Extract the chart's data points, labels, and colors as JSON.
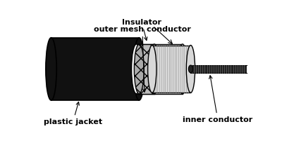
{
  "bg_color": "#ffffff",
  "labels": {
    "insulator": "Insulator",
    "outer_mesh": "outer mesh conductor",
    "inner_conductor": "inner conductor",
    "plastic_jacket": "plastic jacket"
  },
  "label_fontsize": 8,
  "colors": {
    "black": "#000000",
    "dark_gray": "#222222",
    "light_gray": "#cccccc",
    "white": "#ffffff",
    "medium_gray": "#999999",
    "outer_jacket": "#111111",
    "insulator_white": "#f5f5f5",
    "mesh_gray": "#888888",
    "inner_wire": "#333333"
  }
}
